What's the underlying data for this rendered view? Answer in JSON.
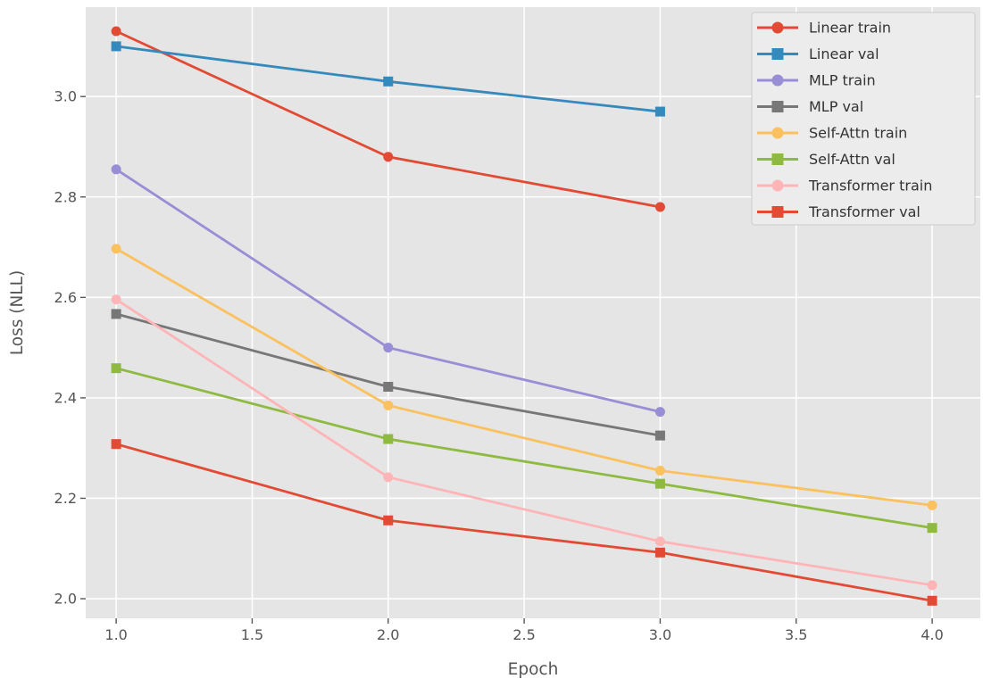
{
  "style": {
    "figure_bg": "#ffffff",
    "axes_bg": "#e5e5e5",
    "grid_color": "#ffffff",
    "tick_color": "#555555",
    "label_color": "#555555",
    "legend_bg": "#ececec",
    "legend_border": "#cccccc",
    "legend_text": "#333333"
  },
  "chart_data": {
    "type": "line",
    "title": "",
    "xlabel": "Epoch",
    "ylabel": "Loss (NLL)",
    "xlim": [
      0.888,
      4.177
    ],
    "ylim": [
      1.961,
      3.178
    ],
    "grid": true,
    "legend_position": "upper-right",
    "xticks": {
      "values": [
        1.0,
        1.5,
        2.0,
        2.5,
        3.0,
        3.5,
        4.0
      ],
      "labels": [
        "1.0",
        "1.5",
        "2.0",
        "2.5",
        "3.0",
        "3.5",
        "4.0"
      ]
    },
    "yticks": {
      "values": [
        2.0,
        2.2,
        2.4,
        2.6,
        2.8,
        3.0
      ],
      "labels": [
        "2.0",
        "2.2",
        "2.4",
        "2.6",
        "2.8",
        "3.0"
      ]
    },
    "series": [
      {
        "name": "Linear train",
        "marker": "circle",
        "color": "#E24A33",
        "x": [
          1,
          2,
          3
        ],
        "y": [
          3.13,
          2.88,
          2.78
        ]
      },
      {
        "name": "Linear val",
        "marker": "square",
        "color": "#348ABD",
        "x": [
          1,
          2,
          3
        ],
        "y": [
          3.1,
          3.03,
          2.97
        ]
      },
      {
        "name": "MLP train",
        "marker": "circle",
        "color": "#988ED5",
        "x": [
          1,
          2,
          3
        ],
        "y": [
          2.855,
          2.5,
          2.372
        ]
      },
      {
        "name": "MLP val",
        "marker": "square",
        "color": "#777777",
        "x": [
          1,
          2,
          3
        ],
        "y": [
          2.567,
          2.422,
          2.325
        ]
      },
      {
        "name": "Self-Attn train",
        "marker": "circle",
        "color": "#FBC15E",
        "x": [
          1,
          2,
          3,
          4
        ],
        "y": [
          2.697,
          2.385,
          2.255,
          2.186
        ]
      },
      {
        "name": "Self-Attn val",
        "marker": "square",
        "color": "#8EBA42",
        "x": [
          1,
          2,
          3,
          4
        ],
        "y": [
          2.459,
          2.318,
          2.229,
          2.141
        ]
      },
      {
        "name": "Transformer train",
        "marker": "circle",
        "color": "#FFB5B8",
        "x": [
          1,
          2,
          3,
          4
        ],
        "y": [
          2.596,
          2.242,
          2.114,
          2.027
        ]
      },
      {
        "name": "Transformer val",
        "marker": "square",
        "color": "#E24A33",
        "x": [
          1,
          2,
          3,
          4
        ],
        "y": [
          2.308,
          2.156,
          2.092,
          1.996
        ]
      }
    ]
  }
}
